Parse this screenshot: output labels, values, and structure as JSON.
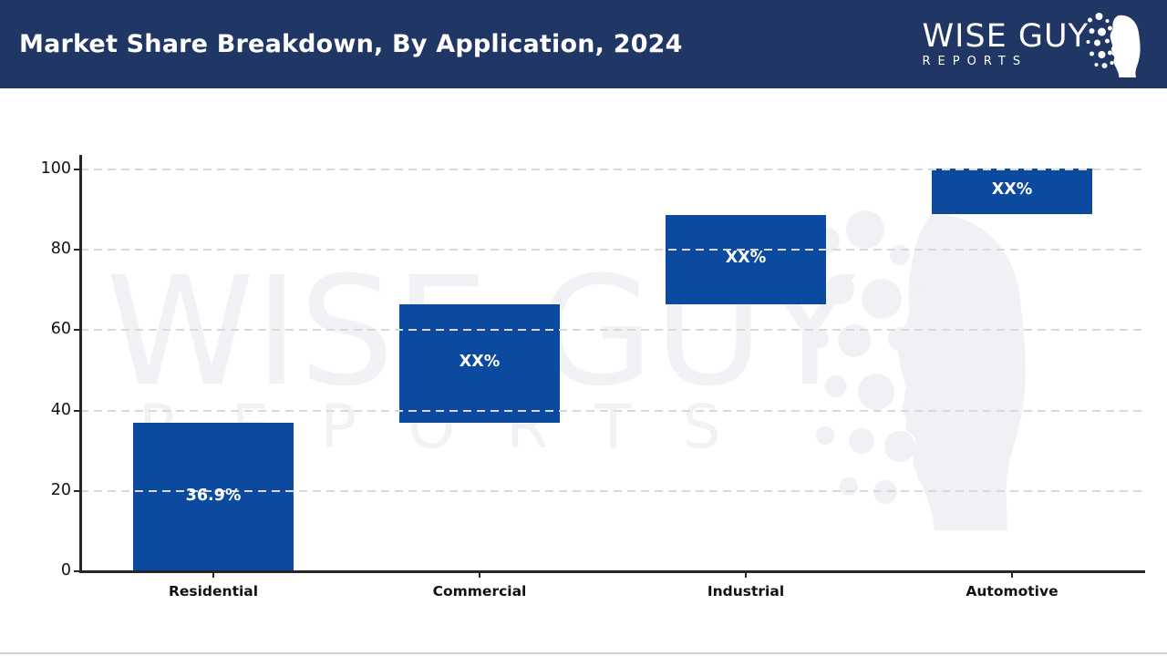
{
  "header": {
    "title": "Market Share Breakdown, By Application, 2024",
    "background_color": "#203664",
    "logo": {
      "line1": "WISE GUY",
      "line2": "REPORTS"
    }
  },
  "watermark": {
    "line1": "WISE GUY",
    "line2": "REPORTS"
  },
  "chart_data": {
    "type": "bar",
    "subtype": "floating-waterfall",
    "title": "",
    "xlabel": "",
    "ylabel": "",
    "categories": [
      "Residential",
      "Commercial",
      "Industrial",
      "Automotive"
    ],
    "segments": [
      {
        "category": "Residential",
        "start": 0,
        "end": 36.9,
        "label": "36.9%"
      },
      {
        "category": "Commercial",
        "start": 37.0,
        "end": 66.5,
        "label": "XX%"
      },
      {
        "category": "Industrial",
        "start": 66.5,
        "end": 88.7,
        "label": "XX%"
      },
      {
        "category": "Automotive",
        "start": 88.9,
        "end": 100.3,
        "label": "XX%"
      }
    ],
    "yticks": [
      0,
      20,
      40,
      60,
      80,
      100
    ],
    "ylim": [
      0,
      103.5
    ],
    "grid": true,
    "grid_style": "dashed",
    "grid_over_bars": true,
    "legend": false,
    "bar_color": "#0c4aa0",
    "bar_label_color": "#ffffff",
    "axis_color": "#262626",
    "gridline_color": "#d9d9d9"
  }
}
